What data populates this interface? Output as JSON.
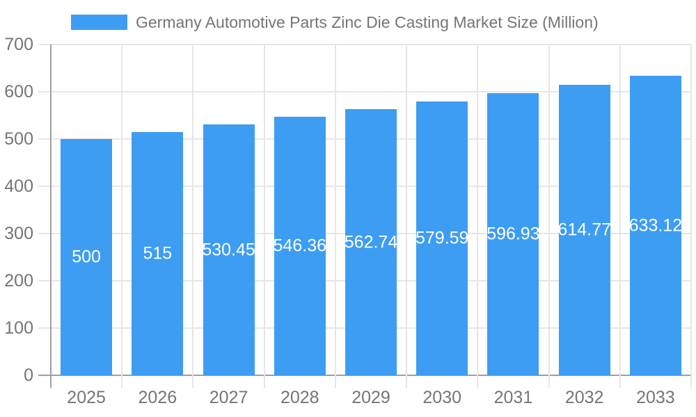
{
  "legend": {
    "label": "Germany Automotive Parts Zinc Die Casting Market Size (Million)"
  },
  "chart_data": {
    "type": "bar",
    "title": "Germany Automotive Parts Zinc Die Casting Market Size (Million)",
    "categories": [
      "2025",
      "2026",
      "2027",
      "2028",
      "2029",
      "2030",
      "2031",
      "2032",
      "2033"
    ],
    "values": [
      500,
      515,
      530.45,
      546.36,
      562.74,
      579.59,
      596.93,
      614.77,
      633.12
    ],
    "value_labels": [
      "500",
      "515",
      "530.45",
      "546.36",
      "562.74",
      "579.59",
      "596.93",
      "614.77",
      "633.12"
    ],
    "series_name": "Germany Automotive Parts Zinc Die Casting Market Size (Million)",
    "xlabel": "",
    "ylabel": "",
    "ylim": [
      0,
      700
    ],
    "ytick_step": 100,
    "ytick_labels": [
      "0",
      "100",
      "200",
      "300",
      "400",
      "500",
      "600",
      "700"
    ],
    "grid": true,
    "legend_position": "top",
    "value_labels_inside_bars": true
  },
  "colors": {
    "bar": "#3D9DF3",
    "axis_text": "#757575",
    "grid_line": "#e6e6e6",
    "axis_line": "#9e9e9e",
    "value_label_text": "#ffffff",
    "background": "#ffffff"
  }
}
